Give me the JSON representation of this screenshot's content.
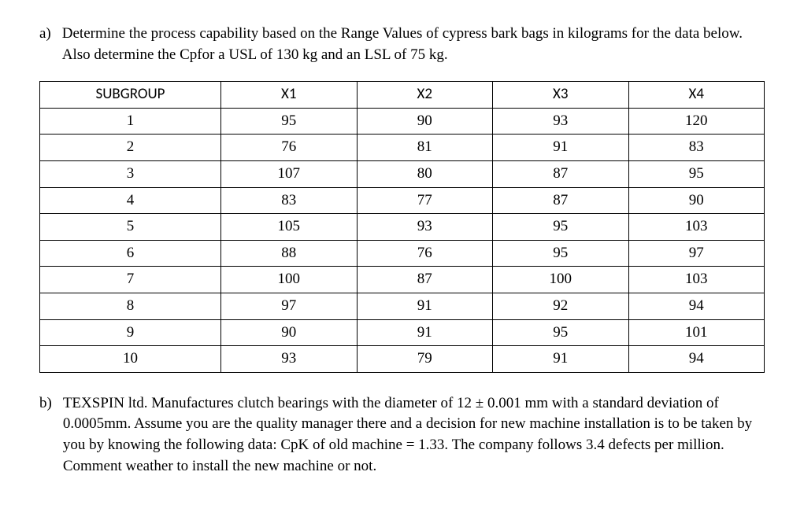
{
  "qa": {
    "marker": "a)",
    "text": "Determine the process capability based on the Range Values of cypress bark bags in kilograms for the data below. Also determine the Cpfor a USL of 130 kg and an LSL of 75 kg."
  },
  "table": {
    "columns": [
      "SUBGROUP",
      "X1",
      "X2",
      "X3",
      "X4"
    ],
    "rows": [
      [
        "1",
        "95",
        "90",
        "93",
        "120"
      ],
      [
        "2",
        "76",
        "81",
        "91",
        "83"
      ],
      [
        "3",
        "107",
        "80",
        "87",
        "95"
      ],
      [
        "4",
        "83",
        "77",
        "87",
        "90"
      ],
      [
        "5",
        "105",
        "93",
        "95",
        "103"
      ],
      [
        "6",
        "88",
        "76",
        "95",
        "97"
      ],
      [
        "7",
        "100",
        "87",
        "100",
        "103"
      ],
      [
        "8",
        "97",
        "91",
        "92",
        "94"
      ],
      [
        "9",
        "90",
        "91",
        "95",
        "101"
      ],
      [
        "10",
        "93",
        "79",
        "91",
        "94"
      ]
    ]
  },
  "qb": {
    "marker": "b)",
    "text": "TEXSPIN ltd. Manufactures clutch bearings with the diameter of 12 ± 0.001 mm with a standard deviation of 0.0005mm. Assume you are the quality manager there and a decision for new machine installation is to be taken by you by knowing the following data: CpK of old machine = 1.33. The company follows 3.4 defects per million. Comment weather to install the new machine or not."
  },
  "style": {
    "border_color": "#000000",
    "background": "#ffffff",
    "text_color": "#000000",
    "font_body": "Times New Roman",
    "font_header": "Calibri",
    "font_size_pt": 14
  }
}
